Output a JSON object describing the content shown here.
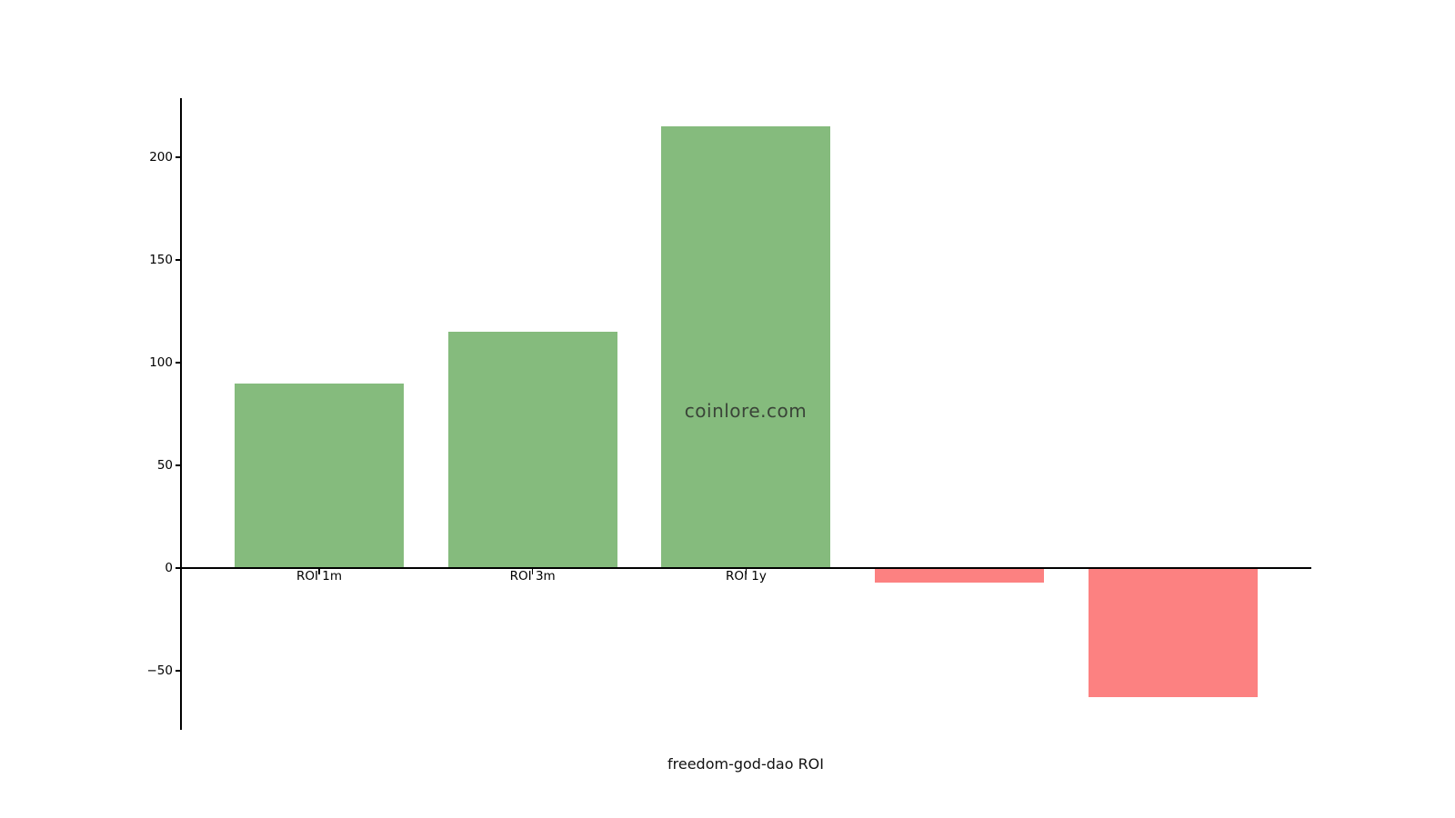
{
  "page": {
    "background_color": "#ffffff"
  },
  "chart_data": {
    "type": "bar",
    "title": "freedom-god-dao ROI",
    "watermark": "coinlore.com",
    "categories": [
      "ROI 1m",
      "ROI 3m",
      "ROI 1y",
      "",
      ""
    ],
    "values": [
      90,
      115,
      215,
      -7,
      -63
    ],
    "bar_colors": [
      "#85bb7d",
      "#85bb7d",
      "#85bb7d",
      "#fc8181",
      "#fc8181"
    ],
    "positive_color": "#85bb7d",
    "negative_color": "#fc8181",
    "axis_color": "#000000",
    "y_ticks": [
      200,
      150,
      100,
      50,
      0,
      -50
    ],
    "y_tick_labels": [
      "200",
      "150",
      "100",
      "50",
      "0",
      "−50"
    ],
    "ylim": [
      -79,
      229
    ],
    "xlabel": "",
    "ylabel": "",
    "grid": false,
    "legend": null
  }
}
